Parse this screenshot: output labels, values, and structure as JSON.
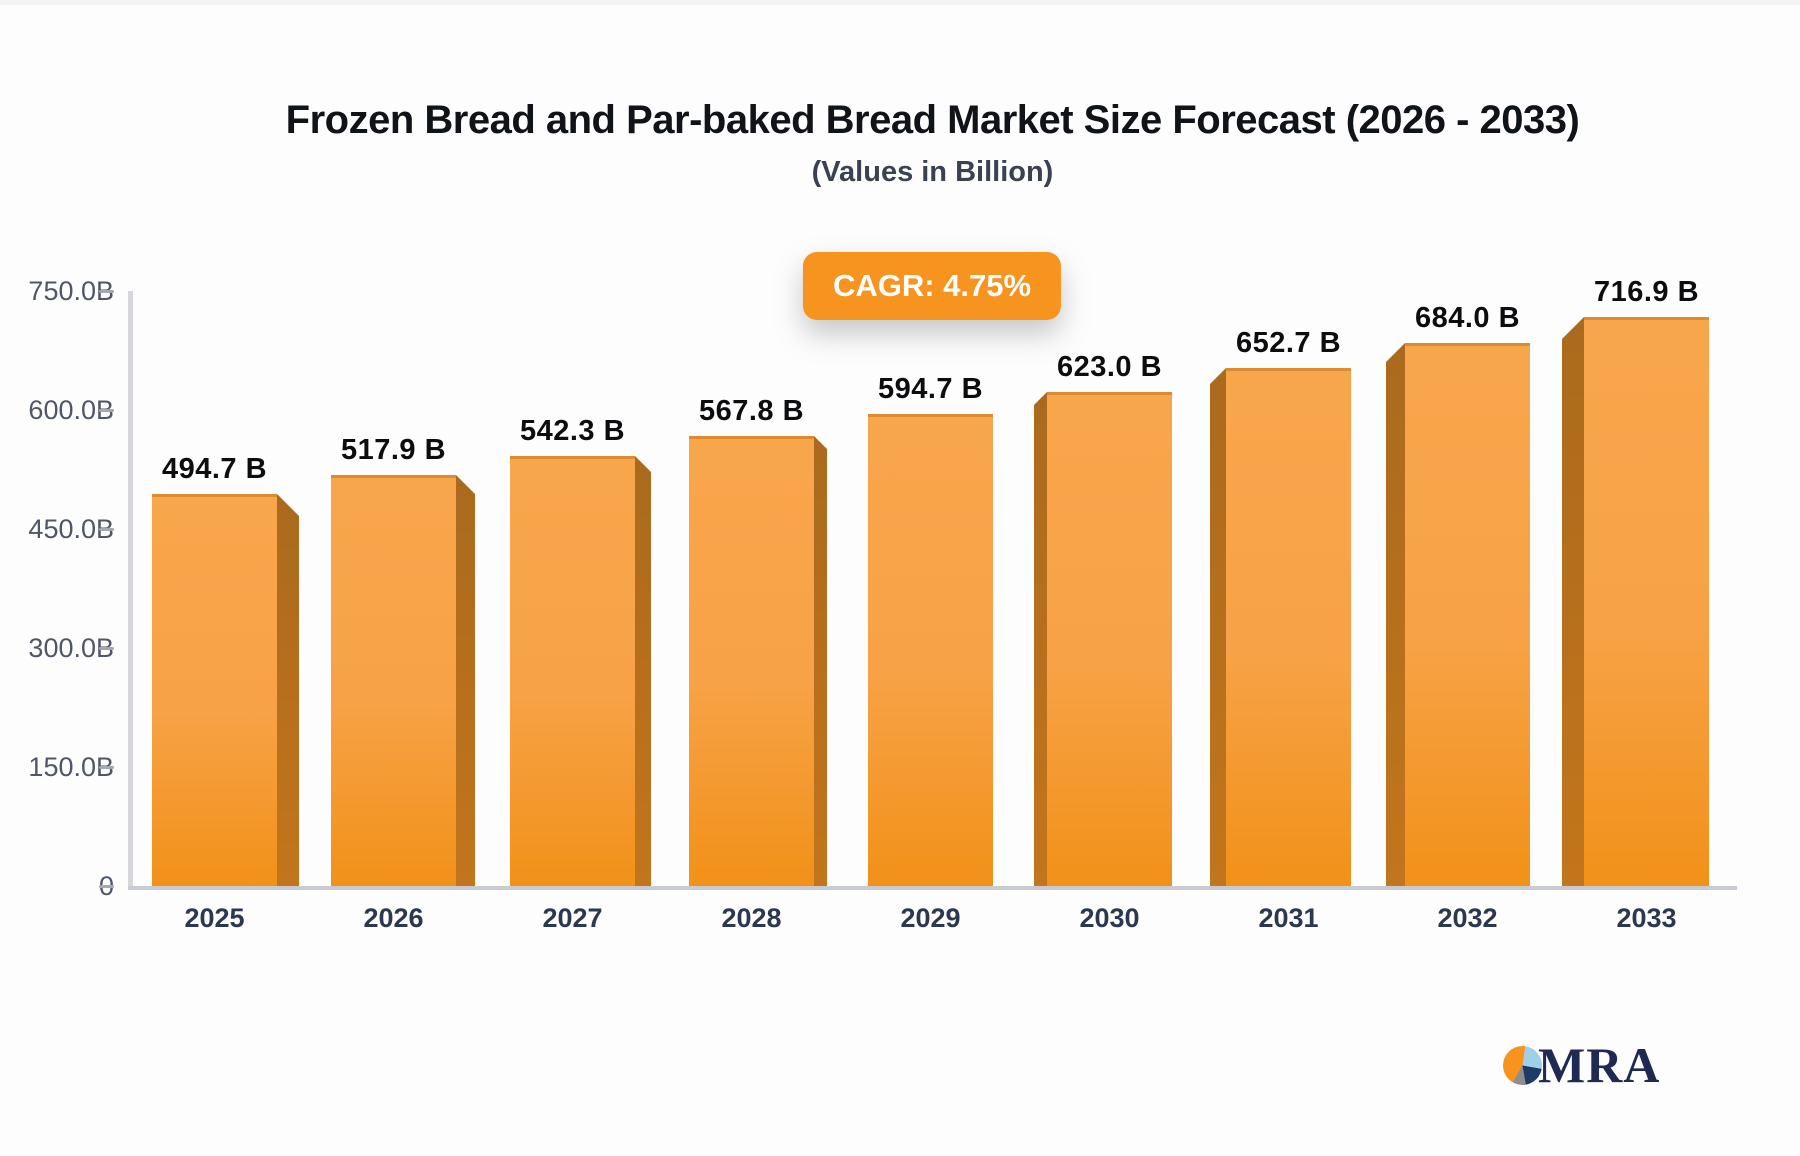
{
  "header": {
    "title": "Frozen Bread and Par-baked Bread Market Size Forecast (2026 - 2033)",
    "subtitle": "(Values in Billion)"
  },
  "badge": {
    "label": "CAGR: 4.75%"
  },
  "logo": {
    "text": "MRA"
  },
  "colors": {
    "bar_face_top": "#f8a64c",
    "bar_face_bottom": "#f19119",
    "bar_face_top_edge": "#de8b30",
    "bar_side_dark": "#b06e1d",
    "badge_bg": "#f7941f",
    "badge_text": "#ffffff",
    "title_text": "#101318",
    "subtitle_text": "#3a4251",
    "y_label_text": "#4e5668",
    "x_label_text": "#2c3850",
    "value_label_text": "#0c0d0f",
    "axis_line": "#d5d7dc",
    "baseline": "#c8ccd2",
    "logo_navy": "#1f2a52",
    "logo_lightblue": "#9fd0ea",
    "logo_gray": "#8e8e90",
    "logo_orange": "#f7941e"
  },
  "chart_data": {
    "type": "bar",
    "title": "Frozen Bread and Par-baked Bread Market Size Forecast (2026 - 2033)",
    "subtitle": "(Values in Billion)",
    "xlabel": "",
    "ylabel": "",
    "categories": [
      "2025",
      "2026",
      "2027",
      "2028",
      "2029",
      "2030",
      "2031",
      "2032",
      "2033"
    ],
    "values": [
      494.7,
      517.9,
      542.3,
      567.8,
      594.7,
      623.0,
      652.7,
      684.0,
      716.9
    ],
    "value_labels": [
      "494.7 B",
      "517.9 B",
      "542.3 B",
      "567.8 B",
      "594.7 B",
      "623.0 B",
      "652.7 B",
      "684.0 B",
      "716.9 B"
    ],
    "ylim": [
      0,
      750
    ],
    "yticks": [
      {
        "value": 750,
        "label": "750.0B"
      },
      {
        "value": 600,
        "label": "600.0B"
      },
      {
        "value": 450,
        "label": "450.0B"
      },
      {
        "value": 300,
        "label": "300.0B"
      },
      {
        "value": 150,
        "label": "150.0B"
      },
      {
        "value": 0,
        "label": "0"
      }
    ],
    "grid": false,
    "legend": null,
    "annotation": "CAGR: 4.75%",
    "bar_style": "3d-perspective-orange"
  }
}
